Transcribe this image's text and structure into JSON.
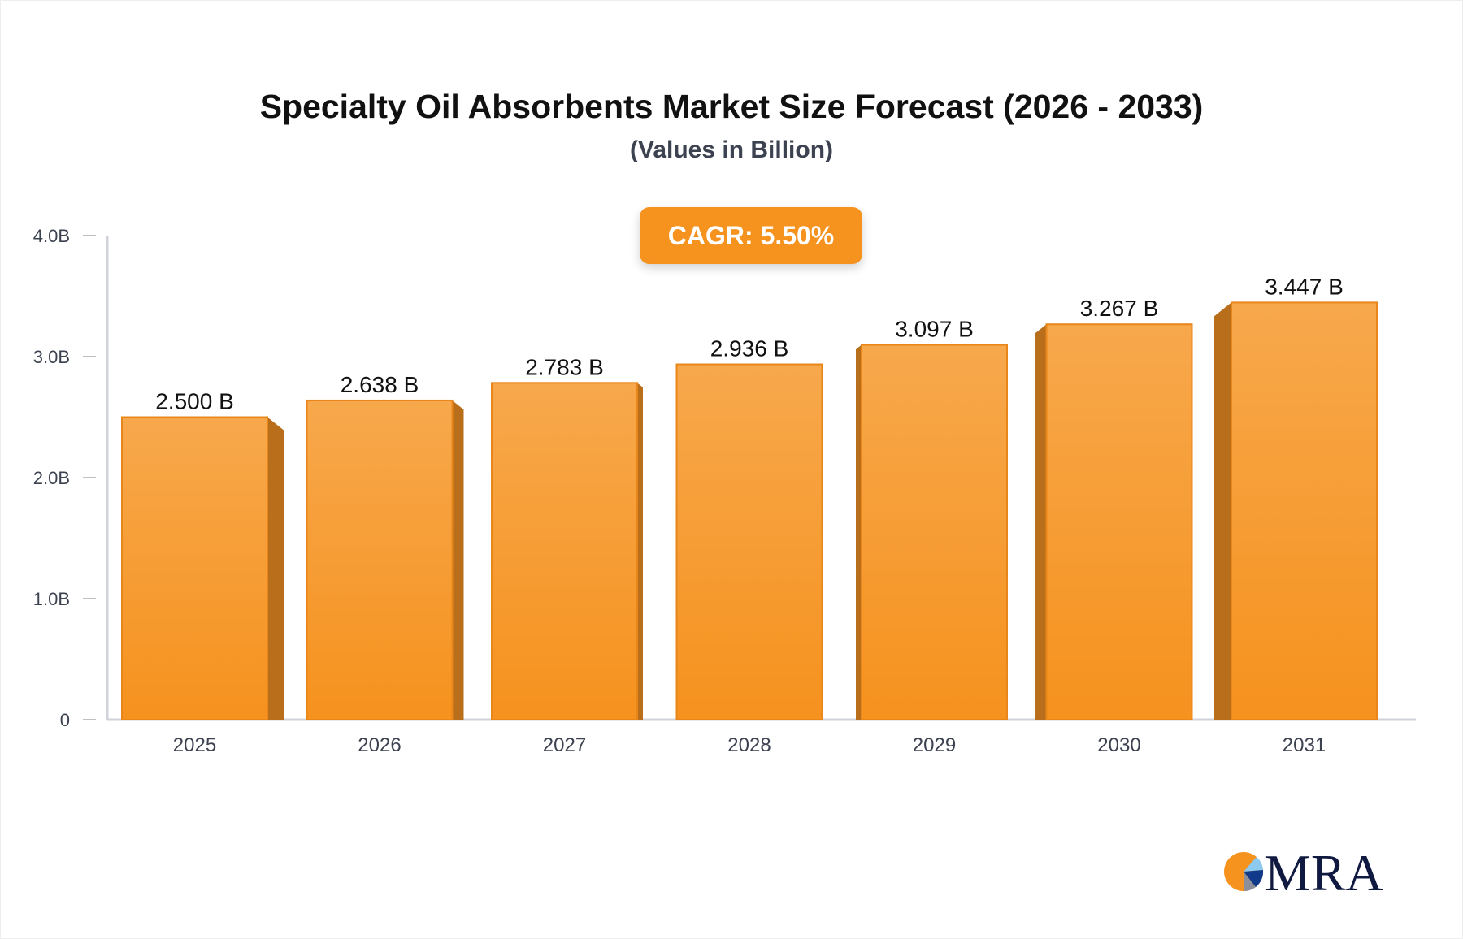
{
  "chart_data": {
    "type": "bar",
    "title": "Specialty Oil Absorbents Market Size Forecast (2026 - 2033)",
    "subtitle": "(Values in Billion)",
    "annotation": "CAGR: 5.50%",
    "categories": [
      "2025",
      "2026",
      "2027",
      "2028",
      "2029",
      "2030",
      "2031"
    ],
    "values": [
      2.5,
      2.638,
      2.783,
      2.936,
      3.097,
      3.267,
      3.447
    ],
    "data_labels": [
      "2.500 B",
      "2.638 B",
      "2.783 B",
      "2.936 B",
      "3.097 B",
      "3.267 B",
      "3.447 B"
    ],
    "yticks": [
      0,
      1,
      2,
      3,
      4
    ],
    "ytick_labels": [
      "0",
      "1.0B",
      "2.0B",
      "3.0B",
      "4.0B"
    ],
    "ylim": [
      0,
      4
    ],
    "xlabel": "",
    "ylabel": "",
    "grid": false,
    "colors": {
      "bar": "#f6921e",
      "bar_top": "#f7a84c",
      "bar_side": "#b86e1a",
      "axis": "#d0d3da"
    }
  },
  "logo": {
    "text": "MRA"
  }
}
